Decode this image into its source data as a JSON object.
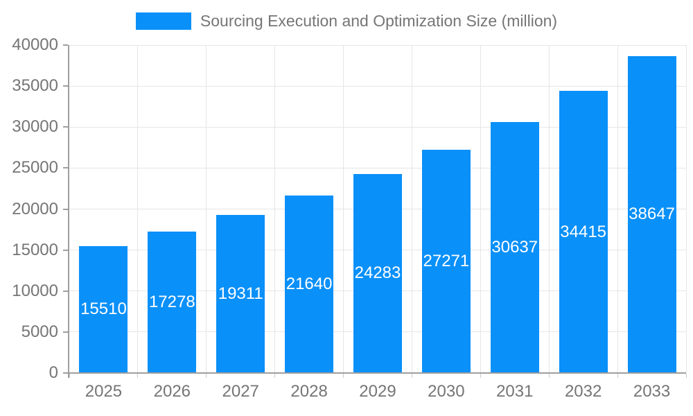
{
  "legend": {
    "label": "Sourcing Execution and Optimization Size (million)"
  },
  "chart_data": {
    "type": "bar",
    "title": "",
    "legend_entries": [
      "Sourcing Execution and Optimization Size (million)"
    ],
    "legend_position": "top-center",
    "categories": [
      "2025",
      "2026",
      "2027",
      "2028",
      "2029",
      "2030",
      "2031",
      "2032",
      "2033"
    ],
    "values": [
      15510,
      17278,
      19311,
      21640,
      24283,
      27271,
      30637,
      34415,
      38647
    ],
    "value_labels_position": "inside-center",
    "xlabel": "",
    "ylabel": "",
    "ylim": [
      0,
      40000
    ],
    "yticks": [
      0,
      5000,
      10000,
      15000,
      20000,
      25000,
      30000,
      35000,
      40000
    ],
    "grid": true,
    "colors": {
      "bar": "#0a90f9",
      "grid_line": "#e6e6e6",
      "axis_line": "#9e9e9e",
      "minor_tick": "#cccccc",
      "axis_text": "#757575",
      "value_text": "#ffffff",
      "background": "#ffffff"
    }
  }
}
